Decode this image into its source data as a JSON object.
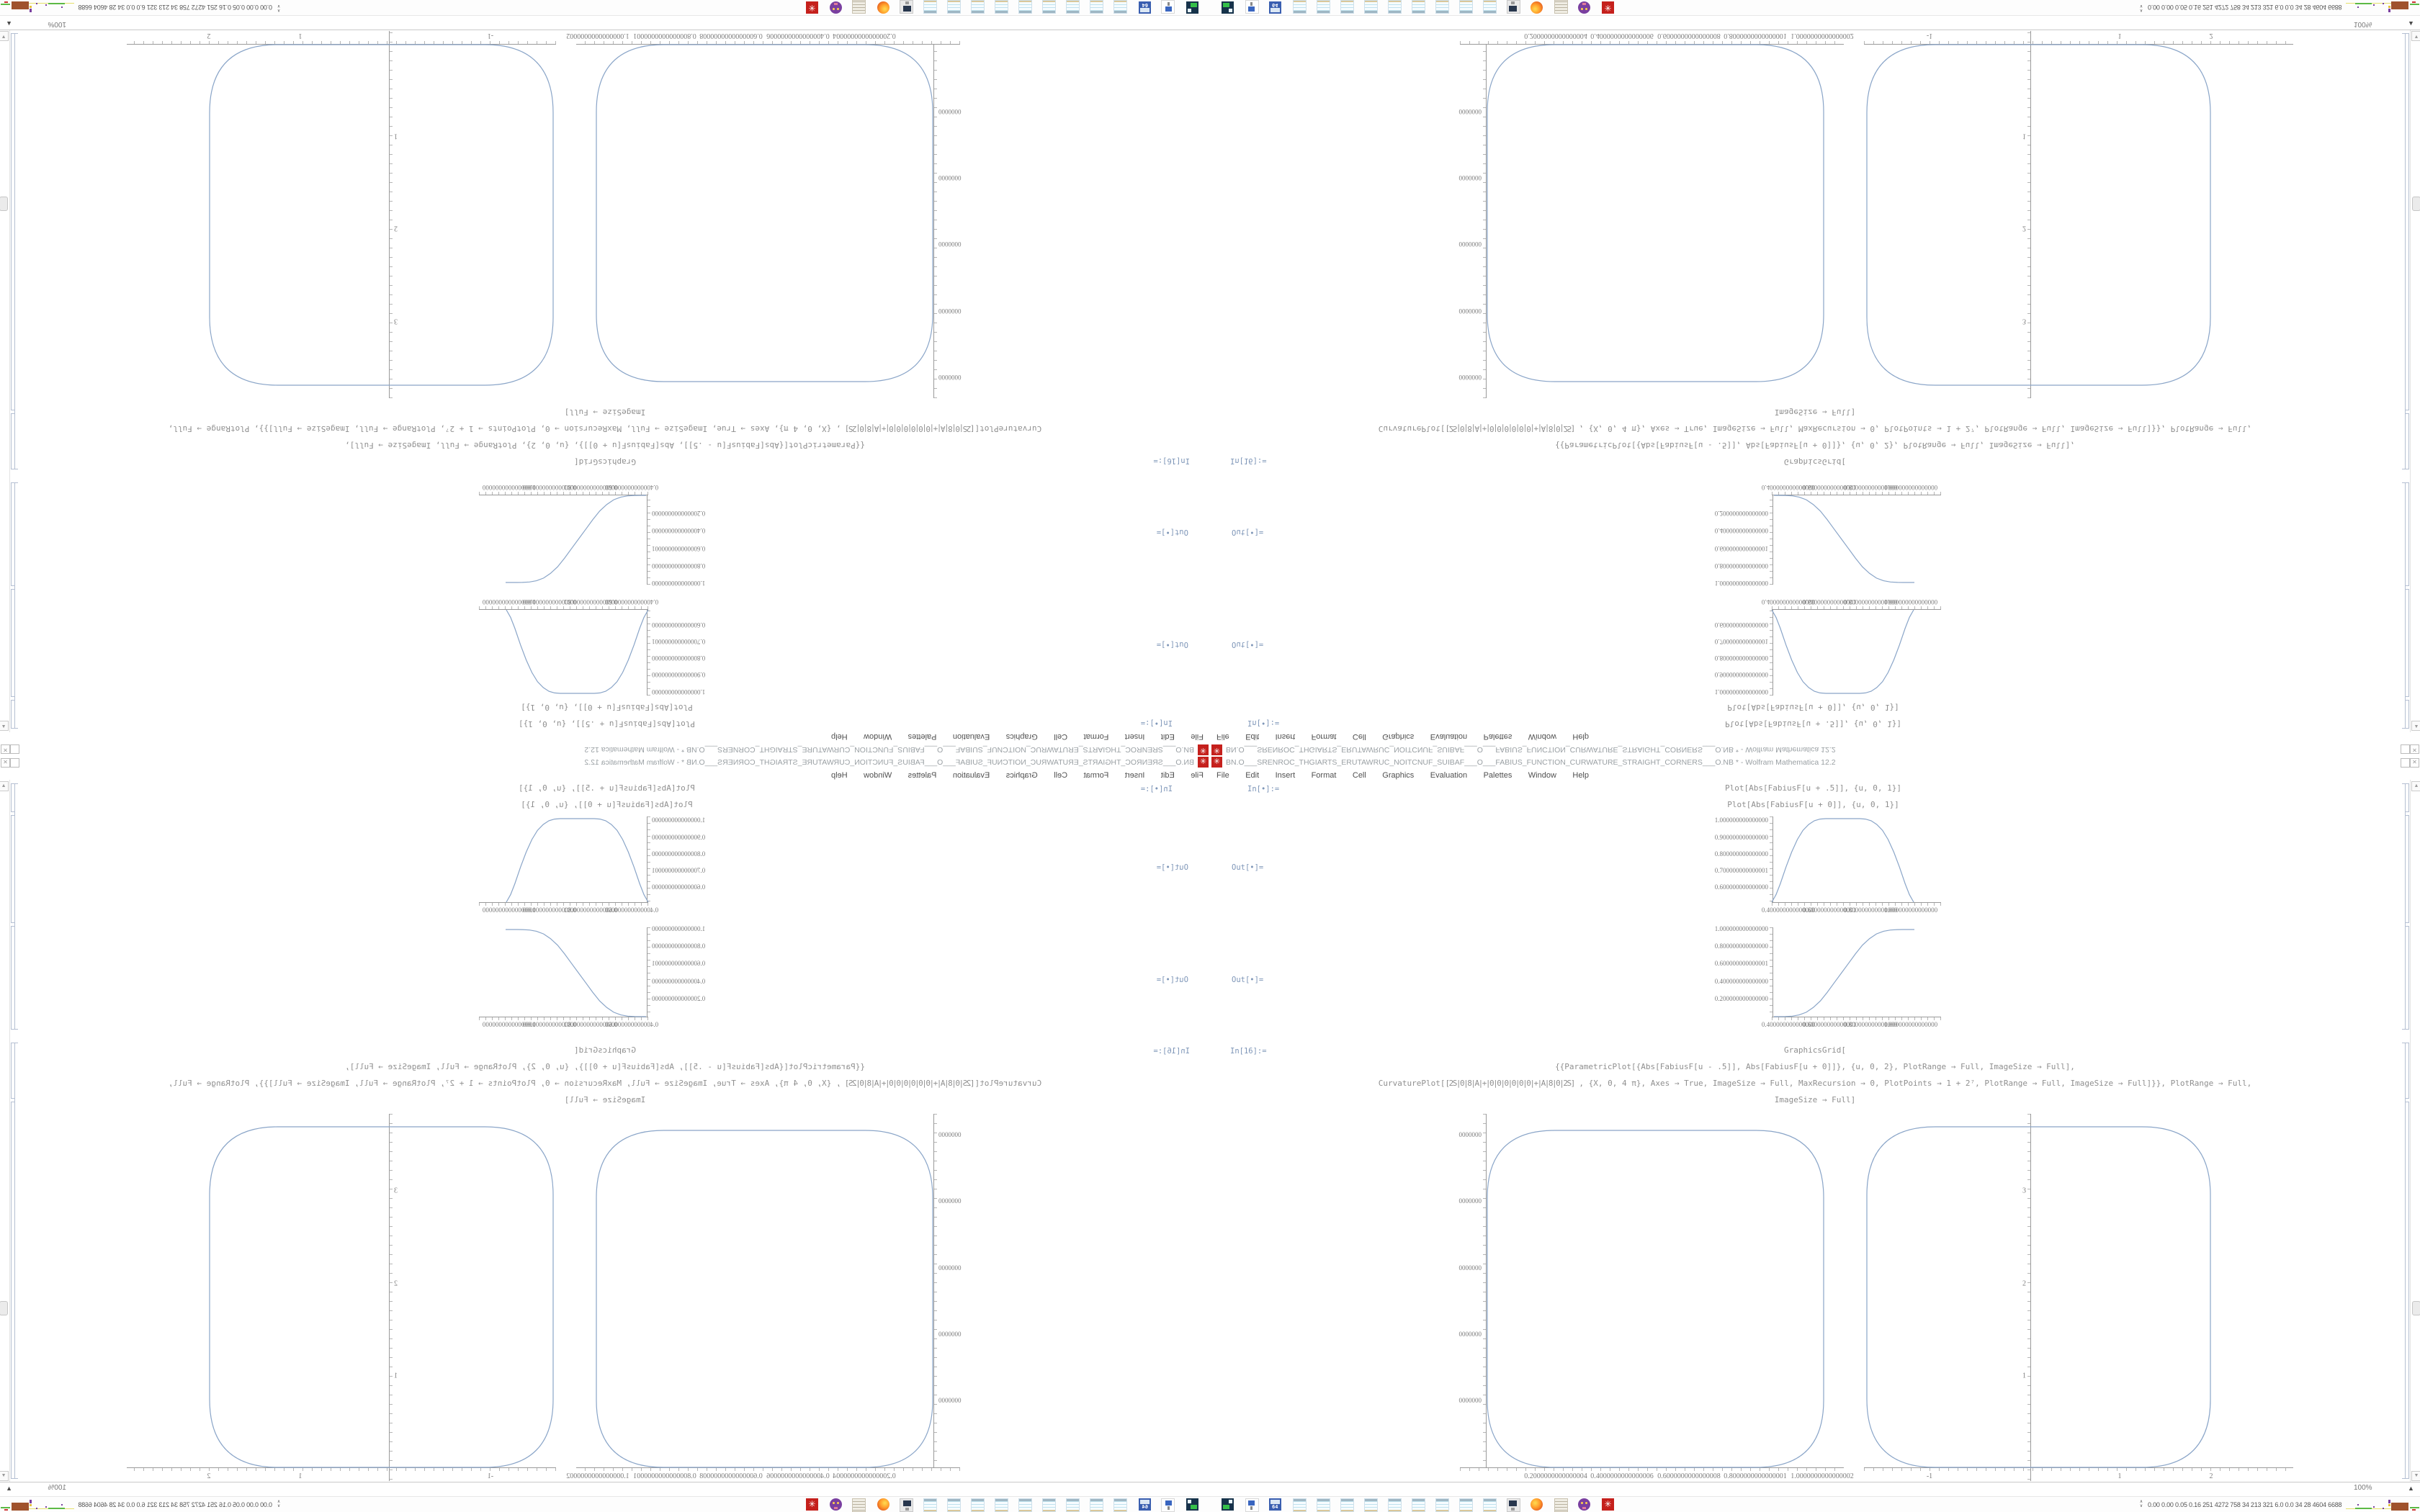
{
  "colors": {
    "plot_curve": "#8aa5c8",
    "axis": "#9a9a9a",
    "spikey_red": "#c5201c",
    "cell_bracket": "#b4bfd2",
    "taskbar_yellow": "#e4e06a",
    "taskbar_green": "#5cb944",
    "taskbar_purple": "#7a3fa0",
    "taskbar_brown": "#a0522d",
    "taskbar_red": "#cc3333"
  },
  "window": {
    "title": "BN.O___SRENROC_THGIARTS_ERUTAWRUC_NOITCNUF_SUIBAF___O___FABIUS_FUNCTION_CURWATURE_STRAIGHT_CORNERS___O.NB * - Wolfram Mathematica 12.2",
    "spikey_glyph": "✳",
    "menu": [
      "File",
      "Edit",
      "Insert",
      "Format",
      "Cell",
      "Graphics",
      "Evaluation",
      "Palettes",
      "Window",
      "Help"
    ],
    "buttons": {
      "maximize": "",
      "close": "✕"
    },
    "scroll_up": "▲",
    "scroll_down": "▼",
    "zoom_label": "100%",
    "resize_grip": "▲"
  },
  "notebook": {
    "cell1": {
      "in_label": "In[•]:=",
      "code_line1": "Plot[Abs[FabiusF[u + .5]], {u, 0, 1}]",
      "code_line2": "Plot[Abs[FabiusF[u + 0]], {u, 0, 1}]"
    },
    "out1_label": "Out[•]=",
    "out2_label": "Out[•]=",
    "cell2": {
      "in_label": "In[16]:=",
      "code_line1": "GraphicsGrid[",
      "code_line2": "{{ParametricPlot[{Abs[FabiusF[u - .5]], Abs[FabiusF[u + 0]]}, {u, 0, 2}, PlotRange → Full, ImageSize → Full],",
      "code_line3_head": "CurvaturePlot[",
      "code_line3_garble": "[2S|0|8|A|+|0|0|0|0|0|0|+|A|8|0|2S]",
      "code_line3_tail": " , {X, 0, 4 π}, Axes → True, ImageSize → Full, MaxRecursion → 0, PlotPoints → 1 + 2⁷, PlotRange → Full, ImageSize → Full]}}, PlotRange → Full,",
      "code_line4": "ImageSize → Full]"
    }
  },
  "chart_data": [
    {
      "type": "line",
      "description": "Output of Plot[Abs[FabiusF[u + .5]], {u, 0, 1}] — plateau dome curve",
      "xlim": [
        0.3,
        1.02
      ],
      "ylim": [
        0.5,
        1.0
      ],
      "grid": false,
      "y_tick_labels": [
        "1.000000000000000",
        "0.900000000000000",
        "0.800000000000000",
        "0.700000000000001",
        "0.600000000000000"
      ],
      "x_tick_labels": [
        "0.400000000000000",
        "0.600000000000001",
        "0.800000000000000",
        "1.000000000000000"
      ],
      "points": [
        [
          0,
          0
        ],
        [
          0.03,
          0.09
        ],
        [
          0.06,
          0.22
        ],
        [
          0.1,
          0.42
        ],
        [
          0.14,
          0.6
        ],
        [
          0.18,
          0.75
        ],
        [
          0.22,
          0.86
        ],
        [
          0.26,
          0.93
        ],
        [
          0.3,
          0.975
        ],
        [
          0.34,
          0.995
        ],
        [
          0.38,
          1
        ],
        [
          0.62,
          1
        ],
        [
          0.66,
          0.995
        ],
        [
          0.7,
          0.975
        ],
        [
          0.74,
          0.93
        ],
        [
          0.78,
          0.86
        ],
        [
          0.82,
          0.75
        ],
        [
          0.86,
          0.6
        ],
        [
          0.9,
          0.42
        ],
        [
          0.94,
          0.22
        ],
        [
          0.97,
          0.09
        ],
        [
          1,
          0
        ]
      ]
    },
    {
      "type": "line",
      "description": "Output of Plot[Abs[FabiusF[u + 0]], {u, 0, 1}] — sigmoid rise 0→1",
      "xlim": [
        0.3,
        1.02
      ],
      "ylim": [
        0,
        1.0
      ],
      "grid": false,
      "y_tick_labels": [
        "1.000000000000000",
        "0.800000000000000",
        "0.600000000000001",
        "0.400000000000000",
        "0.200000000000000"
      ],
      "x_tick_labels": [
        "0.400000000000000",
        "0.600000000000001",
        "0.800000000000000",
        "1.000000000000000"
      ],
      "points": [
        [
          0,
          0
        ],
        [
          0.08,
          0.001
        ],
        [
          0.13,
          0.006
        ],
        [
          0.18,
          0.02
        ],
        [
          0.23,
          0.05
        ],
        [
          0.28,
          0.105
        ],
        [
          0.33,
          0.18
        ],
        [
          0.38,
          0.28
        ],
        [
          0.43,
          0.39
        ],
        [
          0.48,
          0.5
        ],
        [
          0.53,
          0.61
        ],
        [
          0.58,
          0.72
        ],
        [
          0.63,
          0.82
        ],
        [
          0.68,
          0.895
        ],
        [
          0.73,
          0.95
        ],
        [
          0.78,
          0.98
        ],
        [
          0.83,
          0.994
        ],
        [
          0.88,
          0.999
        ],
        [
          0.92,
          1
        ],
        [
          1,
          1
        ]
      ]
    },
    {
      "type": "parametric-line",
      "shape": "rounded_rect",
      "description": "ParametricPlot of {Abs[FabiusF[u - .5]], Abs[FabiusF[u + 0]]} — unit square with rounded corners",
      "xlim": [
        0,
        1.14
      ],
      "ylim": [
        0,
        1.06
      ],
      "corner_radius_frac": 0.2,
      "x_tick_labels": [
        "0.2000000000000004",
        "0.4000000000000006",
        "0.6000000000000008",
        "0.8000000000000001",
        "1.0000000000000002"
      ],
      "y_tick_labels": [
        "0000000",
        "0000000",
        "0000000",
        "0000000",
        "0000000"
      ],
      "y_tick_values": [
        1.0,
        0.8,
        0.6,
        0.4,
        0.2
      ]
    },
    {
      "type": "parametric-line",
      "shape": "rounded_rect",
      "description": "CurvaturePlot output over {X, 0, 4π} — large rounded square on axes",
      "xlim": [
        -1.85,
        2.1
      ],
      "ylim": [
        0,
        3.75
      ],
      "corner_radius_frac": 0.2,
      "x_tick_labels": [
        "-1",
        "1",
        "2"
      ],
      "y_tick_labels": [
        "3",
        "2",
        "1"
      ]
    }
  ],
  "taskbar": {
    "icons": [
      "capture-tool",
      "display-manager",
      "c64-emulator",
      "notepad",
      "notepad",
      "notepad",
      "notepad",
      "notepad",
      "notepad",
      "notepad",
      "notepad",
      "notepad",
      "system-monitor",
      "firefox",
      "document-scroll",
      "purple-mascot",
      "mathematica"
    ],
    "c64_label": "64",
    "mathematica_glyph": "✳",
    "chevron_up": "∧",
    "chevron_down": "∨",
    "status_text": "0.00 0.00 0.05 0.16  251 4272 758   34   213  321   6.0   0.0   34   28  4604 6688"
  }
}
